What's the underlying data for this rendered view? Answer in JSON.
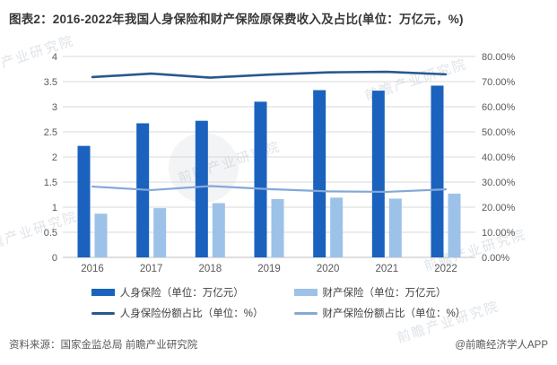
{
  "title": "图表2：2016-2022年我国人身保险和财产保险原保费收入及占比(单位：万亿元，%)",
  "watermark": {
    "text": "前瞻产业研究院"
  },
  "footer": {
    "source": "资料来源：国家金监总局 前瞻产业研究院",
    "credit": "@前瞻经济学人APP"
  },
  "colors": {
    "bar_life": "#1a62be",
    "bar_property": "#9cc2e8",
    "line_life": "#27598e",
    "line_property": "#84a9d6",
    "grid": "#d9d9d9",
    "axis_line": "#bfbfbf",
    "axis_text": "#595959"
  },
  "chart_data": {
    "type": "bar",
    "subtype": "grouped bars with two overlay lines (dual axis)",
    "title": "2016-2022年我国人身保险和财产保险原保费收入及占比",
    "categories": [
      "2016",
      "2017",
      "2018",
      "2019",
      "2020",
      "2021",
      "2022"
    ],
    "series": [
      {
        "name": "人身保险（单位：万亿元）",
        "kind": "bar",
        "axis": "left",
        "values": [
          2.22,
          2.67,
          2.72,
          3.1,
          3.33,
          3.32,
          3.42
        ],
        "color": "#1a62be"
      },
      {
        "name": "财产保险（单位：万亿元）",
        "kind": "bar",
        "axis": "left",
        "values": [
          0.87,
          0.98,
          1.08,
          1.16,
          1.19,
          1.17,
          1.27
        ],
        "color": "#9cc2e8"
      },
      {
        "name": "人身保险份额占比（单位：%）",
        "kind": "line",
        "axis": "right",
        "values": [
          71.8,
          73.2,
          71.6,
          72.8,
          73.7,
          73.9,
          72.9
        ],
        "color": "#27598e"
      },
      {
        "name": "财产保险份额占比（单位：%）",
        "kind": "line",
        "axis": "right",
        "values": [
          28.2,
          26.8,
          28.4,
          27.2,
          26.3,
          26.1,
          27.1
        ],
        "color": "#84a9d6"
      }
    ],
    "left_axis": {
      "min": 0,
      "max": 4,
      "step": 0.5,
      "ticks_bottom_up": [
        "0",
        "0.5",
        "1",
        "1.5",
        "2",
        "2.5",
        "3",
        "3.5",
        "4"
      ]
    },
    "right_axis": {
      "min": 0,
      "max": 80,
      "step": 10,
      "ticks_bottom_up": [
        "0.00%",
        "10.00%",
        "20.00%",
        "30.00%",
        "40.00%",
        "50.00%",
        "60.00%",
        "70.00%",
        "80.00%"
      ]
    },
    "grid": true,
    "legend_position": "bottom"
  }
}
